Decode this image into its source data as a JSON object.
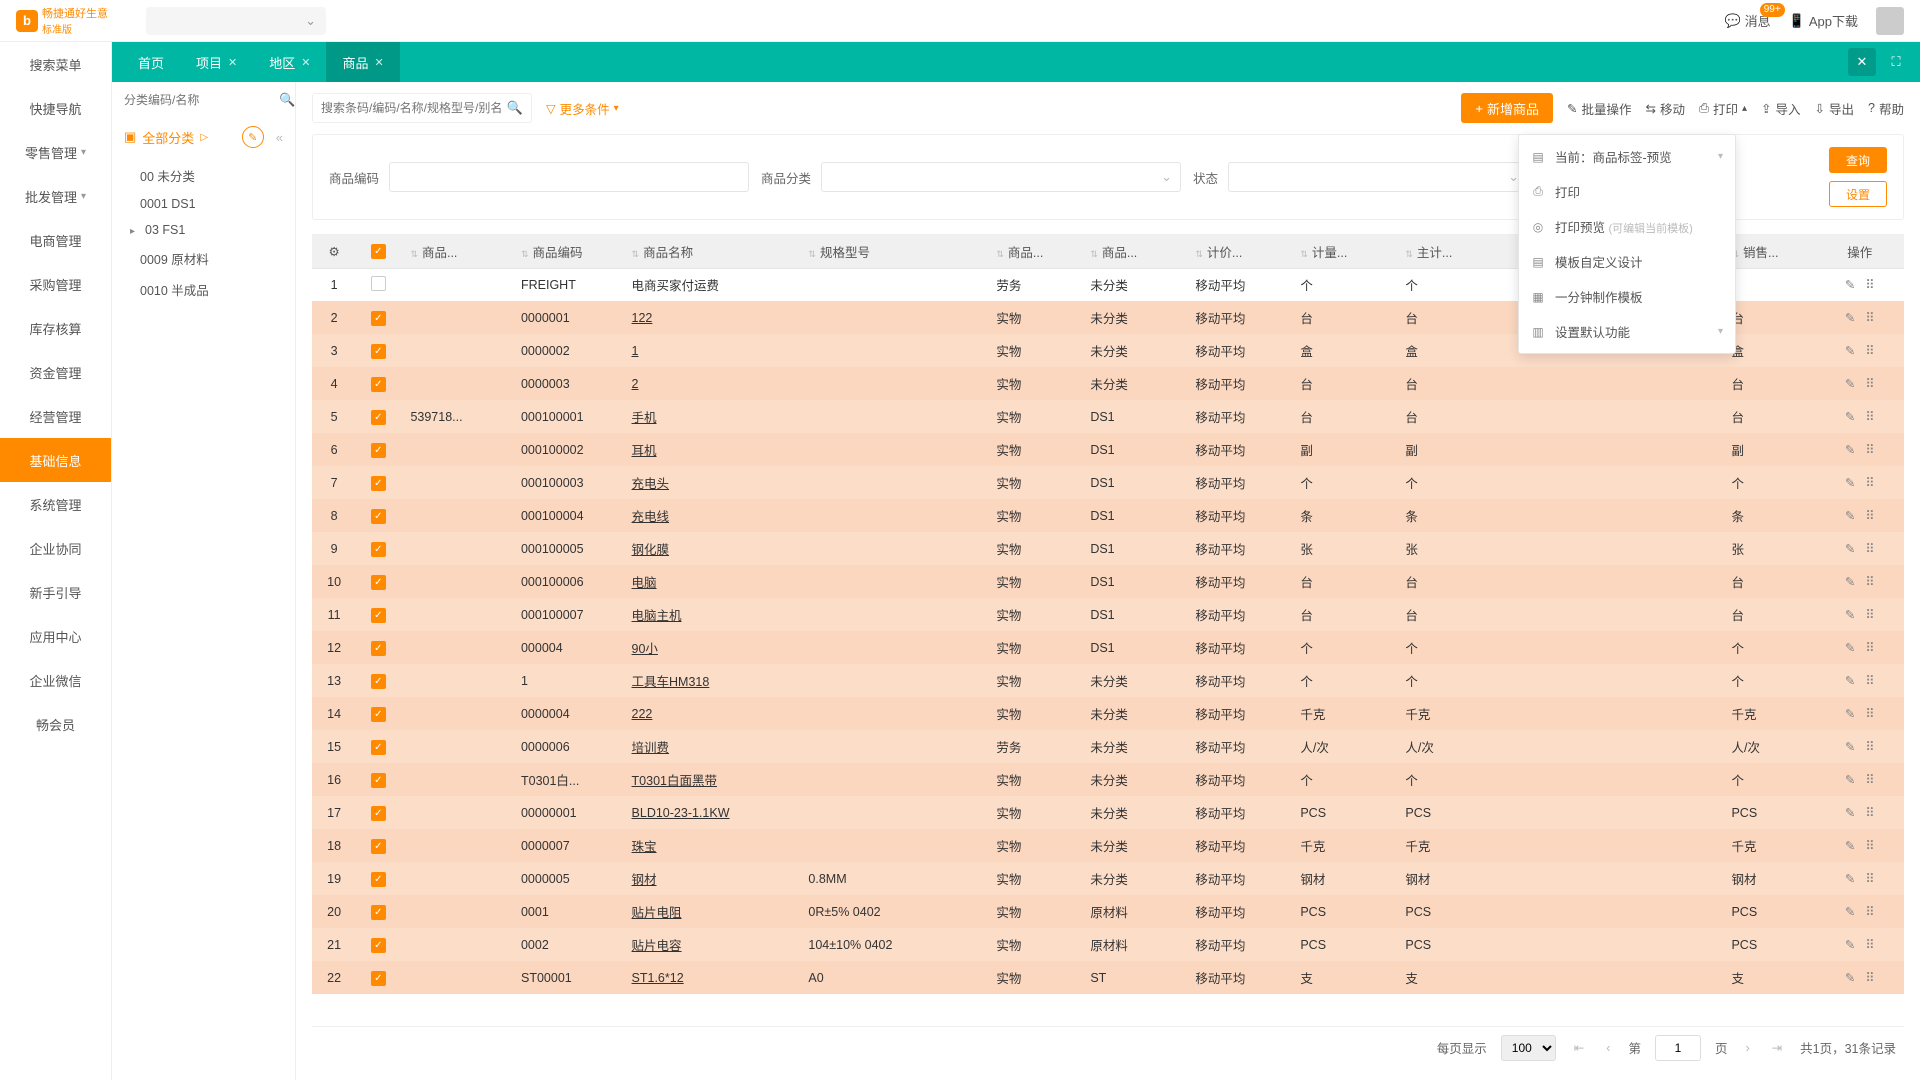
{
  "colors": {
    "accent": "#ff8a00",
    "teal": "#00b7a3",
    "row_even": "#fbd7bf",
    "row_odd": "#fcddc8"
  },
  "top": {
    "logo_main": "畅捷通好生意",
    "logo_sub": "标准版",
    "msg": "消息",
    "msg_badge": "99+",
    "app_dl": "App下载"
  },
  "sidebar": [
    {
      "label": "搜索菜单"
    },
    {
      "label": "快捷导航"
    },
    {
      "label": "零售管理",
      "caret": true
    },
    {
      "label": "批发管理",
      "caret": true
    },
    {
      "label": "电商管理"
    },
    {
      "label": "采购管理"
    },
    {
      "label": "库存核算"
    },
    {
      "label": "资金管理"
    },
    {
      "label": "经营管理"
    },
    {
      "label": "基础信息",
      "active": true
    },
    {
      "label": "系统管理"
    },
    {
      "label": "企业协同"
    },
    {
      "label": "新手引导"
    },
    {
      "label": "应用中心"
    },
    {
      "label": "企业微信"
    },
    {
      "label": "畅会员"
    }
  ],
  "tabs": [
    {
      "label": "首页"
    },
    {
      "label": "项目",
      "closable": true
    },
    {
      "label": "地区",
      "closable": true
    },
    {
      "label": "商品",
      "closable": true,
      "active": true
    }
  ],
  "tree": {
    "search_ph": "分类编码/名称",
    "root": "全部分类",
    "nodes": [
      {
        "label": "00 未分类"
      },
      {
        "label": "0001 DS1"
      },
      {
        "label": "03 FS1",
        "expandable": true
      },
      {
        "label": "0009 原材料"
      },
      {
        "label": "0010 半成品"
      }
    ]
  },
  "toolbar": {
    "search_ph": "搜索条码/编码/名称/规格型号/别名",
    "more": "更多条件",
    "add": "新增商品",
    "links": [
      {
        "ico": "✎",
        "label": "批量操作"
      },
      {
        "ico": "⇆",
        "label": "移动"
      },
      {
        "ico": "⎙",
        "label": "打印",
        "caret": true
      },
      {
        "ico": "⇪",
        "label": "导入"
      },
      {
        "ico": "⇩",
        "label": "导出"
      },
      {
        "ico": "?",
        "label": "帮助"
      }
    ]
  },
  "filter": {
    "f1": "商品编码",
    "f2": "商品分类",
    "f3": "状态",
    "query": "查询",
    "setting": "设置"
  },
  "dropdown": {
    "current_prefix": "当前：",
    "current": "商品标签-预览",
    "items": [
      {
        "ico": "⎙",
        "label": "打印"
      },
      {
        "ico": "◎",
        "label": "打印预览",
        "sub": "(可编辑当前模板)"
      },
      {
        "ico": "▤",
        "label": "模板自定义设计"
      },
      {
        "ico": "▦",
        "label": "一分钟制作模板"
      },
      {
        "ico": "▥",
        "label": "设置默认功能",
        "caret": true
      }
    ]
  },
  "table": {
    "headers": [
      "",
      "",
      "商品...",
      "商品编码",
      "商品名称",
      "规格型号",
      "商品...",
      "商品...",
      "计价...",
      "计量...",
      "主计...",
      "",
      "",
      "销售...",
      "操作"
    ],
    "rows": [
      {
        "n": 1,
        "chk": false,
        "barcode": "",
        "code": "FREIGHT",
        "name": "电商买家付运费",
        "name_link": false,
        "spec": "",
        "type": "劳务",
        "cat": "未分类",
        "price": "移动平均",
        "unit": "个",
        "main": "个",
        "sale": "",
        "plain": true
      },
      {
        "n": 2,
        "chk": true,
        "barcode": "",
        "code": "0000001",
        "name": "122",
        "spec": "",
        "type": "实物",
        "cat": "未分类",
        "price": "移动平均",
        "unit": "台",
        "main": "台",
        "sale": "台"
      },
      {
        "n": 3,
        "chk": true,
        "barcode": "",
        "code": "0000002",
        "name": "1",
        "spec": "",
        "type": "实物",
        "cat": "未分类",
        "price": "移动平均",
        "unit": "盒",
        "main": "盒",
        "sale": "盒"
      },
      {
        "n": 4,
        "chk": true,
        "barcode": "",
        "code": "0000003",
        "name": "2",
        "spec": "",
        "type": "实物",
        "cat": "未分类",
        "price": "移动平均",
        "unit": "台",
        "main": "台",
        "sale": "台"
      },
      {
        "n": 5,
        "chk": true,
        "barcode": "539718...",
        "code": "000100001",
        "name": "手机",
        "spec": "",
        "type": "实物",
        "cat": "DS1",
        "price": "移动平均",
        "unit": "台",
        "main": "台",
        "sale": "台"
      },
      {
        "n": 6,
        "chk": true,
        "barcode": "",
        "code": "000100002",
        "name": "耳机",
        "spec": "",
        "type": "实物",
        "cat": "DS1",
        "price": "移动平均",
        "unit": "副",
        "main": "副",
        "sale": "副"
      },
      {
        "n": 7,
        "chk": true,
        "barcode": "",
        "code": "000100003",
        "name": "充电头",
        "spec": "",
        "type": "实物",
        "cat": "DS1",
        "price": "移动平均",
        "unit": "个",
        "main": "个",
        "sale": "个"
      },
      {
        "n": 8,
        "chk": true,
        "barcode": "",
        "code": "000100004",
        "name": "充电线",
        "spec": "",
        "type": "实物",
        "cat": "DS1",
        "price": "移动平均",
        "unit": "条",
        "main": "条",
        "sale": "条"
      },
      {
        "n": 9,
        "chk": true,
        "barcode": "",
        "code": "000100005",
        "name": "钢化膜",
        "spec": "",
        "type": "实物",
        "cat": "DS1",
        "price": "移动平均",
        "unit": "张",
        "main": "张",
        "sale": "张"
      },
      {
        "n": 10,
        "chk": true,
        "barcode": "",
        "code": "000100006",
        "name": "电脑",
        "spec": "",
        "type": "实物",
        "cat": "DS1",
        "price": "移动平均",
        "unit": "台",
        "main": "台",
        "sale": "台"
      },
      {
        "n": 11,
        "chk": true,
        "barcode": "",
        "code": "000100007",
        "name": "电脑主机",
        "spec": "",
        "type": "实物",
        "cat": "DS1",
        "price": "移动平均",
        "unit": "台",
        "main": "台",
        "sale": "台"
      },
      {
        "n": 12,
        "chk": true,
        "barcode": "",
        "code": "000004",
        "name": "90小",
        "spec": "",
        "type": "实物",
        "cat": "DS1",
        "price": "移动平均",
        "unit": "个",
        "main": "个",
        "sale": "个"
      },
      {
        "n": 13,
        "chk": true,
        "barcode": "",
        "code": "1",
        "name": "工具车HM318",
        "spec": "",
        "type": "实物",
        "cat": "未分类",
        "price": "移动平均",
        "unit": "个",
        "main": "个",
        "sale": "个"
      },
      {
        "n": 14,
        "chk": true,
        "barcode": "",
        "code": "0000004",
        "name": "222",
        "spec": "",
        "type": "实物",
        "cat": "未分类",
        "price": "移动平均",
        "unit": "千克",
        "main": "千克",
        "sale": "千克"
      },
      {
        "n": 15,
        "chk": true,
        "barcode": "",
        "code": "0000006",
        "name": "培训费",
        "spec": "",
        "type": "劳务",
        "cat": "未分类",
        "price": "移动平均",
        "unit": "人/次",
        "main": "人/次",
        "sale": "人/次"
      },
      {
        "n": 16,
        "chk": true,
        "barcode": "",
        "code": "T0301白...",
        "name": "T0301白面黑带",
        "spec": "",
        "type": "实物",
        "cat": "未分类",
        "price": "移动平均",
        "unit": "个",
        "main": "个",
        "sale": "个"
      },
      {
        "n": 17,
        "chk": true,
        "barcode": "",
        "code": "00000001",
        "name": "BLD10-23-1.1KW",
        "spec": "",
        "type": "实物",
        "cat": "未分类",
        "price": "移动平均",
        "unit": "PCS",
        "main": "PCS",
        "sale": "PCS"
      },
      {
        "n": 18,
        "chk": true,
        "barcode": "",
        "code": "0000007",
        "name": "珠宝",
        "spec": "",
        "type": "实物",
        "cat": "未分类",
        "price": "移动平均",
        "unit": "千克",
        "main": "千克",
        "sale": "千克"
      },
      {
        "n": 19,
        "chk": true,
        "barcode": "",
        "code": "0000005",
        "name": "钢材",
        "spec": "0.8MM",
        "type": "实物",
        "cat": "未分类",
        "price": "移动平均",
        "unit": "钢材",
        "main": "钢材",
        "sale": "钢材"
      },
      {
        "n": 20,
        "chk": true,
        "barcode": "",
        "code": "0001",
        "name": "贴片电阻",
        "spec": "0R±5% 0402",
        "type": "实物",
        "cat": "原材料",
        "price": "移动平均",
        "unit": "PCS",
        "main": "PCS",
        "sale": "PCS"
      },
      {
        "n": 21,
        "chk": true,
        "barcode": "",
        "code": "0002",
        "name": "贴片电容",
        "spec": "104±10% 0402",
        "type": "实物",
        "cat": "原材料",
        "price": "移动平均",
        "unit": "PCS",
        "main": "PCS",
        "sale": "PCS"
      },
      {
        "n": 22,
        "chk": true,
        "barcode": "",
        "code": "ST00001",
        "name": "ST1.6*12",
        "spec": "A0",
        "type": "实物",
        "cat": "ST",
        "price": "移动平均",
        "unit": "支",
        "main": "支",
        "sale": "支"
      }
    ]
  },
  "pager": {
    "per_label": "每页显示",
    "per_value": "100",
    "page_label_pre": "第",
    "page_value": "1",
    "page_label_post": "页",
    "summary": "共1页，31条记录"
  }
}
